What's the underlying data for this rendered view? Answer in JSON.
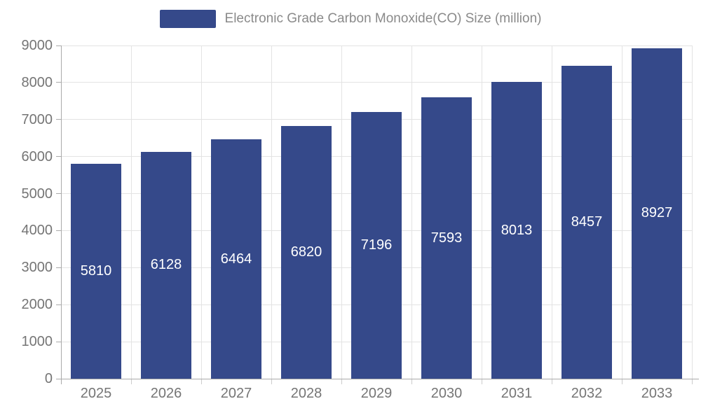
{
  "chart_data": {
    "type": "bar",
    "title": "Electronic Grade Carbon Monoxide(CO) Size (million)",
    "categories": [
      "2025",
      "2026",
      "2027",
      "2028",
      "2029",
      "2030",
      "2031",
      "2032",
      "2033"
    ],
    "values": [
      5810,
      6128,
      6464,
      6820,
      7196,
      7593,
      8013,
      8457,
      8927
    ],
    "xlabel": "",
    "ylabel": "",
    "ylim": [
      0,
      9000
    ],
    "ytick_step": 1000,
    "grid": true,
    "legend_position": "top-center",
    "colors": {
      "bar": "#35498A",
      "bar_label": "#FFFFFF",
      "axis_line": "#AAAAAA",
      "grid_line": "#E3E3E3",
      "x_tick": "#CCCCCC",
      "tick_label": "#757575",
      "legend_text": "#8A8A8A"
    }
  }
}
